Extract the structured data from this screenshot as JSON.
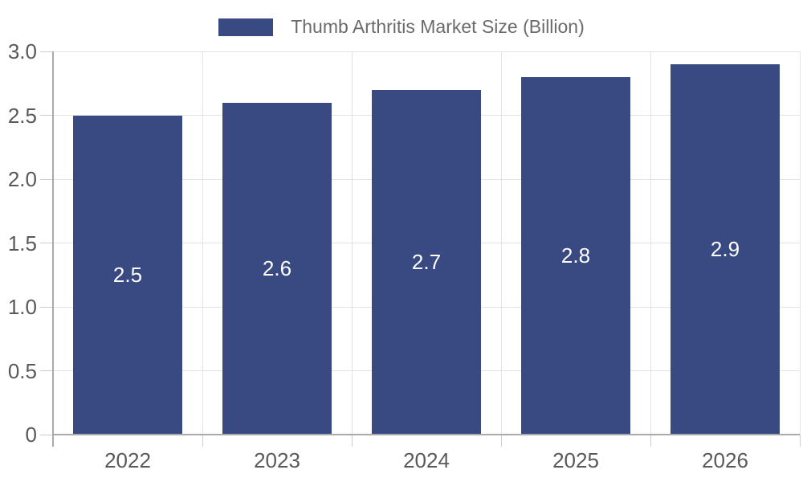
{
  "chart_data": {
    "type": "bar",
    "title": "Thumb Arthritis Market Size (Billion)",
    "legend": {
      "position": "top-center",
      "entries": [
        "Thumb Arthritis Market Size (Billion)"
      ]
    },
    "categories": [
      "2022",
      "2023",
      "2024",
      "2025",
      "2026"
    ],
    "series": [
      {
        "name": "Thumb Arthritis Market Size (Billion)",
        "values": [
          2.5,
          2.6,
          2.7,
          2.8,
          2.9
        ]
      }
    ],
    "bar_value_labels": [
      "2.5",
      "2.6",
      "2.7",
      "2.8",
      "2.9"
    ],
    "xlabel": "",
    "ylabel": "",
    "ylim": [
      0,
      3
    ],
    "yticks": {
      "values": [
        0,
        0.5,
        1,
        1.5,
        2,
        2.5,
        3
      ],
      "labels": [
        "0",
        "0.5",
        "1.0",
        "1.5",
        "2.0",
        "2.5",
        "3.0"
      ]
    },
    "grid": "on",
    "colors": {
      "bar": "#394a83",
      "bar_label_text": "#ffffff",
      "axis_text": "#595959",
      "legend_text": "#6b6b6b",
      "gridline": "#e3e3e3",
      "axis_line": "#aaaaaa",
      "tick_mark": "#cccccc",
      "background": "#ffffff"
    }
  }
}
